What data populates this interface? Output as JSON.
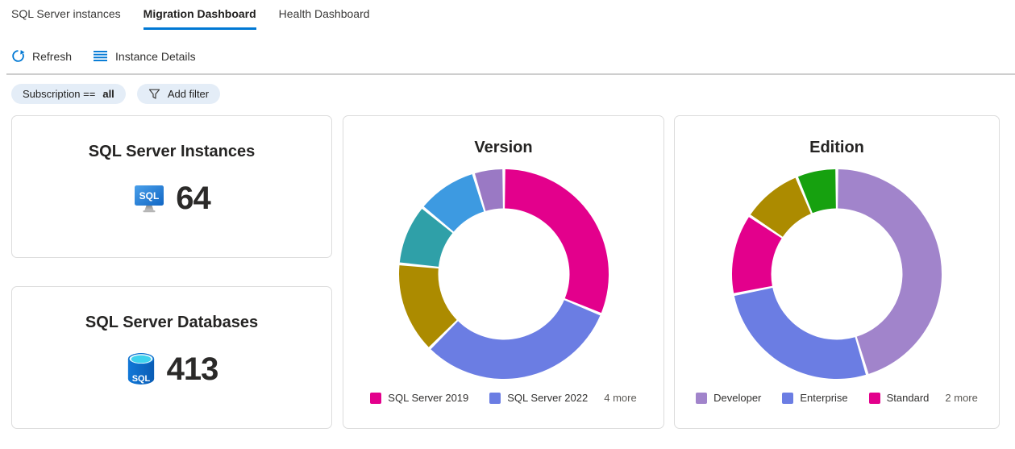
{
  "header": {
    "tabs": [
      {
        "label": "SQL Server instances",
        "active": false
      },
      {
        "label": "Migration Dashboard",
        "active": true
      },
      {
        "label": "Health Dashboard",
        "active": false
      }
    ]
  },
  "toolbar": {
    "refresh": "Refresh",
    "instance_details": "Instance Details"
  },
  "filter_bar": {
    "subscription_pill": {
      "text": "Subscription ==",
      "value": "all"
    },
    "add_filter": "Add filter"
  },
  "kpi_cards": [
    {
      "title": "SQL Server Instances",
      "value": "64",
      "icon": "sql-server-instance-monitor-icon"
    },
    {
      "title": "SQL Server Databases",
      "value": "413",
      "icon": "sql-database-cylinder-icon"
    }
  ],
  "chart_data": [
    {
      "type": "pie",
      "subtype": "donut",
      "title": "Version",
      "total": 64,
      "start_angle_deg": 0,
      "clockwise": true,
      "series": [
        {
          "name": "SQL Server 2019",
          "value": 20,
          "color": "#e3008c"
        },
        {
          "name": "SQL Server 2022",
          "value": 20,
          "color": "#6b7de3"
        },
        {
          "name": null,
          "value": 9,
          "color": "#ac8b00"
        },
        {
          "name": null,
          "value": 6,
          "color": "#2fa0a8"
        },
        {
          "name": null,
          "value": 6,
          "color": "#3d9ae1"
        },
        {
          "name": null,
          "value": 3,
          "color": "#9a79c4"
        }
      ],
      "legend": {
        "position": "bottom",
        "overflow_label": "4 more"
      }
    },
    {
      "type": "pie",
      "subtype": "donut",
      "title": "Edition",
      "total": 64,
      "start_angle_deg": 0,
      "clockwise": true,
      "series": [
        {
          "name": "Developer",
          "value": 29,
          "color": "#a184cb"
        },
        {
          "name": "Enterprise",
          "value": 17,
          "color": "#6b7de3"
        },
        {
          "name": "Standard",
          "value": 8,
          "color": "#e3008c"
        },
        {
          "name": null,
          "value": 6,
          "color": "#ac8b00"
        },
        {
          "name": null,
          "value": 4,
          "color": "#16a10f"
        }
      ],
      "legend": {
        "position": "bottom",
        "overflow_label": "2 more"
      }
    }
  ],
  "colors": {
    "accent": "#0078d4",
    "pill_background": "#e4edf7",
    "card_border": "#dcdcdc",
    "divider": "#cecece"
  }
}
